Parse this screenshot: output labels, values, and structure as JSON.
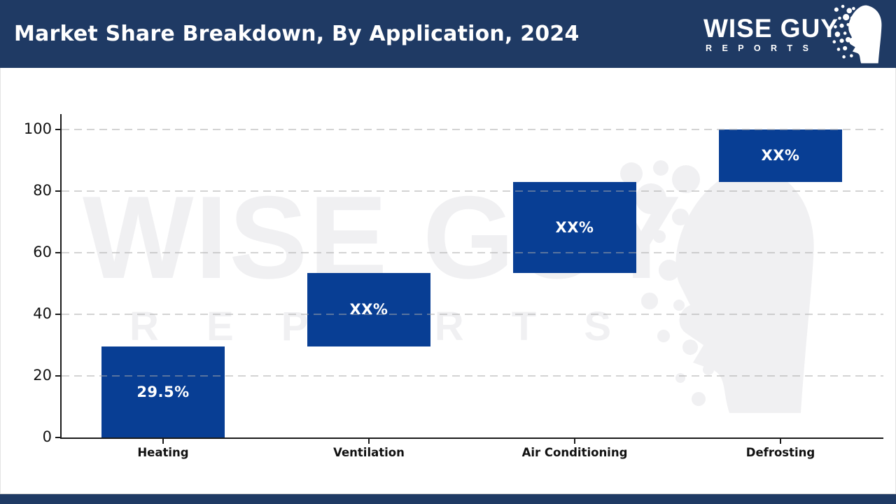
{
  "header": {
    "title": "Market Share Breakdown, By Application, 2024",
    "logo": {
      "line1": "WISE GUY",
      "line2": "R E P O R T S"
    }
  },
  "watermark": {
    "line1": "WISE GUY",
    "line2": "R E P O R T S"
  },
  "chart_data": {
    "type": "bar",
    "subtype": "floating-waterfall",
    "title": "Market Share Breakdown, By Application, 2024",
    "categories": [
      "Heating",
      "Ventilation",
      "Air Conditioning",
      "Defrosting"
    ],
    "bars": [
      {
        "category": "Heating",
        "start": 0,
        "end": 29.5,
        "label": "29.5%"
      },
      {
        "category": "Ventilation",
        "start": 29.5,
        "end": 53.5,
        "label": "XX%"
      },
      {
        "category": "Air Conditioning",
        "start": 53.5,
        "end": 83,
        "label": "XX%"
      },
      {
        "category": "Defrosting",
        "start": 83,
        "end": 100,
        "label": "XX%"
      }
    ],
    "yticks": [
      0,
      20,
      40,
      60,
      80,
      100
    ],
    "ylim": [
      0,
      105
    ],
    "xlabel": "",
    "ylabel": "",
    "grid": "dashed horizontal gridlines above bars",
    "legend": "none"
  },
  "colors": {
    "header_bg": "#1f3a64",
    "footer_bg": "#1f3a64",
    "bar": "#083e94",
    "bar_label": "#ffffff",
    "axis": "#1a1a1a",
    "gridline": "#d9d9d9",
    "watermark": "#f0f0f2",
    "title_text": "#ffffff"
  }
}
